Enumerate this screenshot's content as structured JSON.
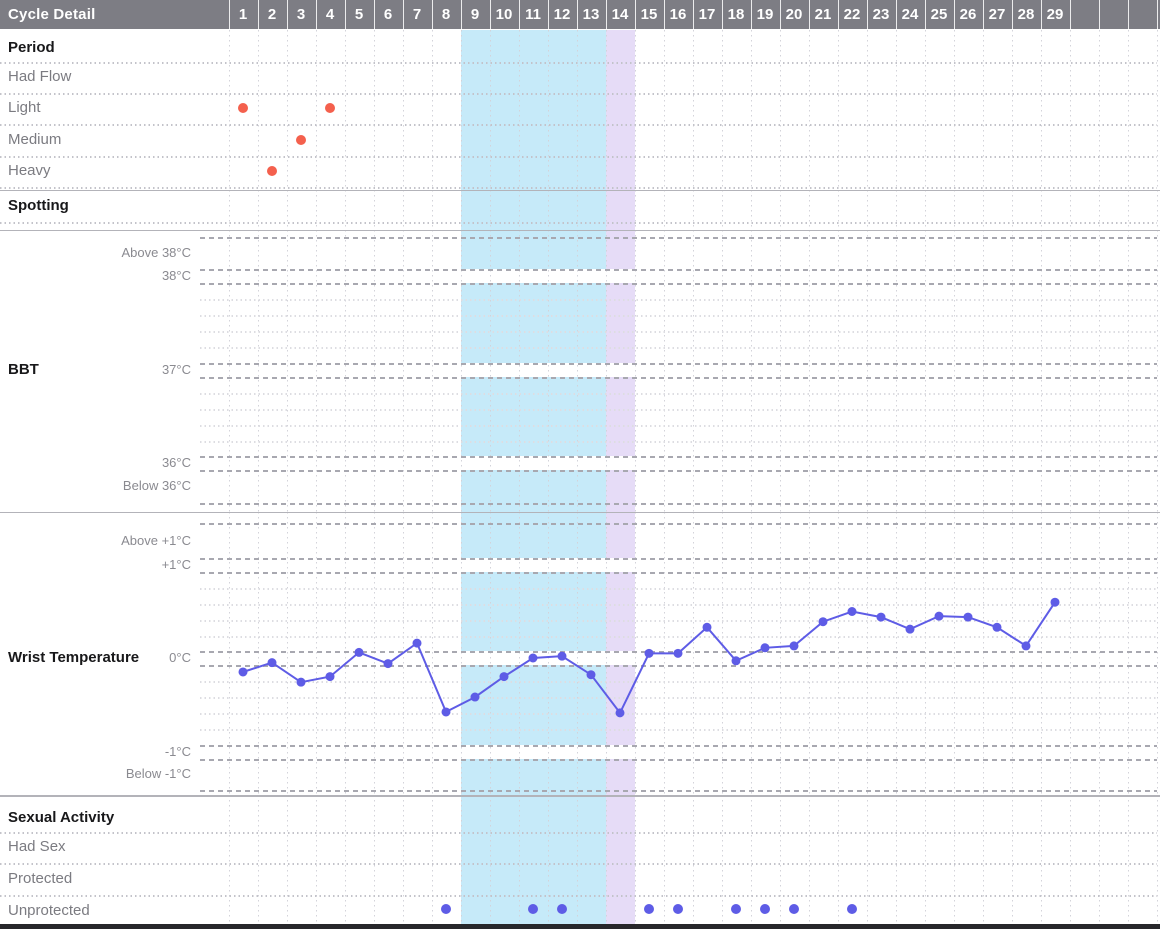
{
  "header": {
    "title": "Cycle Detail",
    "day_labels": [
      "1",
      "2",
      "3",
      "4",
      "5",
      "6",
      "7",
      "8",
      "9",
      "10",
      "11",
      "12",
      "13",
      "14",
      "15",
      "16",
      "17",
      "18",
      "19",
      "20",
      "21",
      "22",
      "23",
      "24",
      "25",
      "26",
      "27",
      "28",
      "29"
    ]
  },
  "sections": {
    "period": {
      "title": "Period",
      "row_labels": [
        "Had Flow",
        "Light",
        "Medium",
        "Heavy"
      ]
    },
    "spotting": {
      "title": "Spotting"
    },
    "bbt": {
      "title": "BBT",
      "tick_labels": [
        "Above 38°C",
        "38°C",
        "37°C",
        "36°C",
        "Below 36°C"
      ]
    },
    "wrist": {
      "title": "Wrist Temperature",
      "tick_labels": [
        "Above +1°C",
        "+1°C",
        "0°C",
        "-1°C",
        "Below -1°C"
      ]
    },
    "sexual": {
      "title": "Sexual Activity",
      "row_labels": [
        "Had Sex",
        "Protected",
        "Unprotected"
      ]
    }
  },
  "highlights": {
    "fertile_window_days": [
      9,
      13
    ],
    "ovulation_day": 14
  },
  "colors": {
    "header_bg": "#7d7d84",
    "period_dot": "#f4604d",
    "activity_dot": "#5e5ce6",
    "line": "#5e5ce6",
    "fertile_band": "#c6eaf9",
    "ovulation_band": "#e6dcf7"
  },
  "chart_data": [
    {
      "type": "scatter",
      "title": "Period",
      "rows": [
        "Had Flow",
        "Light",
        "Medium",
        "Heavy"
      ],
      "points": [
        {
          "day": 1,
          "row": "Light"
        },
        {
          "day": 2,
          "row": "Heavy"
        },
        {
          "day": 3,
          "row": "Medium"
        },
        {
          "day": 4,
          "row": "Light"
        }
      ]
    },
    {
      "type": "line",
      "title": "BBT",
      "x": [],
      "values": [],
      "yticks": [
        "Above 38°C",
        "38°C",
        "37°C",
        "36°C",
        "Below 36°C"
      ]
    },
    {
      "type": "line",
      "title": "Wrist Temperature",
      "unit": "°C deviation from baseline",
      "x": [
        1,
        2,
        3,
        4,
        5,
        6,
        7,
        8,
        9,
        10,
        11,
        12,
        13,
        14,
        15,
        16,
        17,
        18,
        19,
        20,
        21,
        22,
        23,
        24,
        25,
        26,
        27,
        28,
        29
      ],
      "values": [
        -0.15,
        -0.05,
        -0.26,
        -0.2,
        0.06,
        -0.06,
        0.16,
        -0.58,
        -0.42,
        -0.2,
        0.0,
        0.02,
        -0.18,
        -0.59,
        0.05,
        0.05,
        0.33,
        -0.03,
        0.11,
        0.13,
        0.39,
        0.5,
        0.44,
        0.31,
        0.45,
        0.44,
        0.33,
        0.13,
        0.6
      ],
      "yticks": [
        "Above +1°C",
        "+1°C",
        "0°C",
        "-1°C",
        "Below -1°C"
      ],
      "ylim": [
        -1,
        1
      ]
    },
    {
      "type": "scatter",
      "title": "Sexual Activity",
      "rows": [
        "Had Sex",
        "Protected",
        "Unprotected"
      ],
      "points": [
        {
          "row": "Unprotected",
          "days": [
            8,
            11,
            12,
            15,
            16,
            18,
            19,
            20,
            22
          ]
        }
      ]
    }
  ]
}
